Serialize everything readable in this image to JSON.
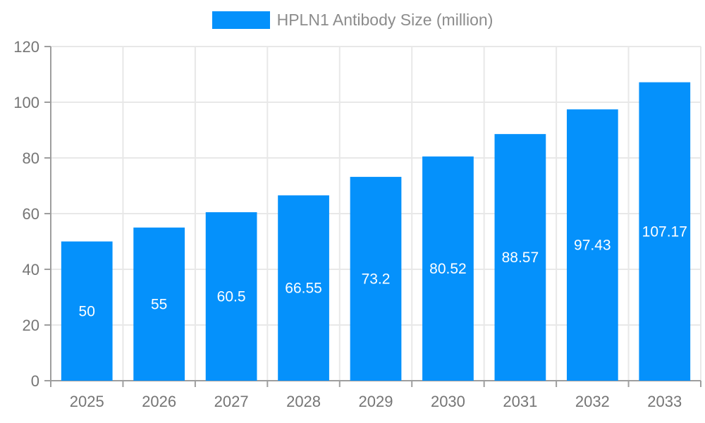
{
  "legend": {
    "label": "HPLN1 Antibody Size (million)"
  },
  "chart_data": {
    "type": "bar",
    "title": "",
    "categories": [
      "2025",
      "2026",
      "2027",
      "2028",
      "2029",
      "2030",
      "2031",
      "2032",
      "2033"
    ],
    "values": [
      50,
      55,
      60.5,
      66.55,
      73.2,
      80.52,
      88.57,
      97.43,
      107.17
    ],
    "value_labels": [
      "50",
      "55",
      "60.5",
      "66.55",
      "73.2",
      "80.52",
      "88.57",
      "97.43",
      "107.17"
    ],
    "series_name": "HPLN1 Antibody Size (million)",
    "xlabel": "",
    "ylabel": "",
    "ylim": [
      0,
      120
    ],
    "ytick_step": 20,
    "yticks": [
      0,
      20,
      40,
      60,
      80,
      100,
      120
    ],
    "grid": "on",
    "legend_position": "top-center",
    "colors": {
      "bar": "#0591fb",
      "axis_line": "#9e9e9e",
      "grid_line": "#e8e8e8",
      "tick_text": "#757575",
      "legend_text": "#8c8c8c",
      "value_text": "#ffffff"
    }
  }
}
